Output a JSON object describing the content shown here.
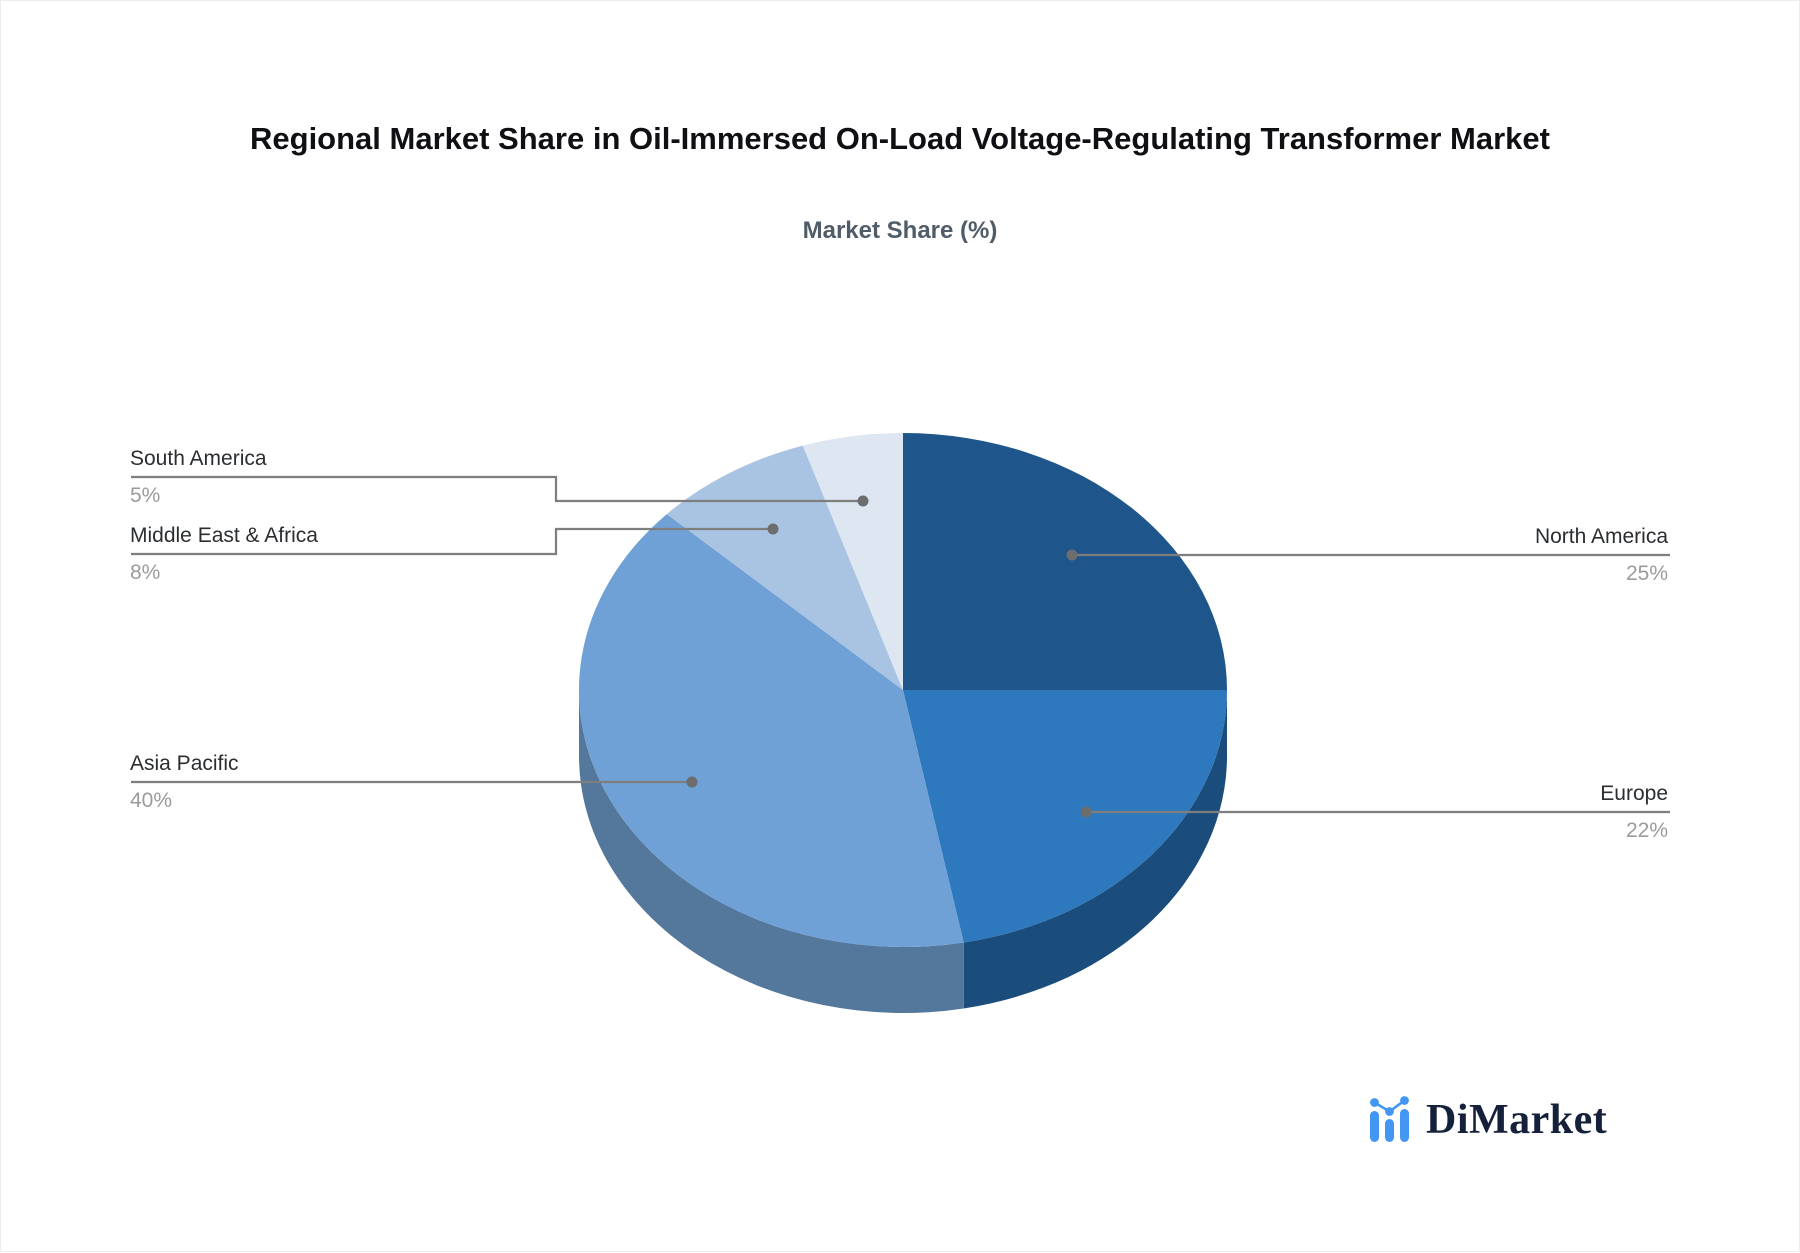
{
  "title": "Regional Market Share in Oil-Immersed On-Load Voltage-Regulating Transformer Market",
  "subtitle": "Market Share (%)",
  "chart_data": {
    "type": "pie",
    "style": "3d",
    "title": "Regional Market Share in Oil-Immersed On-Load Voltage-Regulating Transformer Market",
    "subtitle": "Market Share (%)",
    "unit": "%",
    "start_angle": "12-oclock",
    "direction": "clockwise",
    "legend_position": "none",
    "labels": "callout-lines-with-dots",
    "slices": [
      {
        "label": "North America",
        "value": 25,
        "pct_label": "25%",
        "color": "#1E568C"
      },
      {
        "label": "Europe",
        "value": 22,
        "pct_label": "22%",
        "color": "#2E79BD",
        "side_color": "#1B4D7C"
      },
      {
        "label": "Asia Pacific",
        "value": 40,
        "pct_label": "40%",
        "color": "#6FA1D6",
        "side_color": "#54779C"
      },
      {
        "label": "Middle East & Africa",
        "value": 8,
        "pct_label": "8%",
        "color": "#A9C4E2"
      },
      {
        "label": "South America",
        "value": 5,
        "pct_label": "5%",
        "color": "#DDE6F1"
      }
    ],
    "callout_line_color": "#7E7E7E",
    "callout_dot_color": "#6D6D6D",
    "label_text_color": "#2B2E31",
    "pct_text_color": "#9B9B9B"
  },
  "branding": {
    "logo_text": "DiMarket",
    "logo_icon": "bar-chart-trend-icon",
    "icon_color": "#4496F3",
    "text_color": "#15213A"
  }
}
